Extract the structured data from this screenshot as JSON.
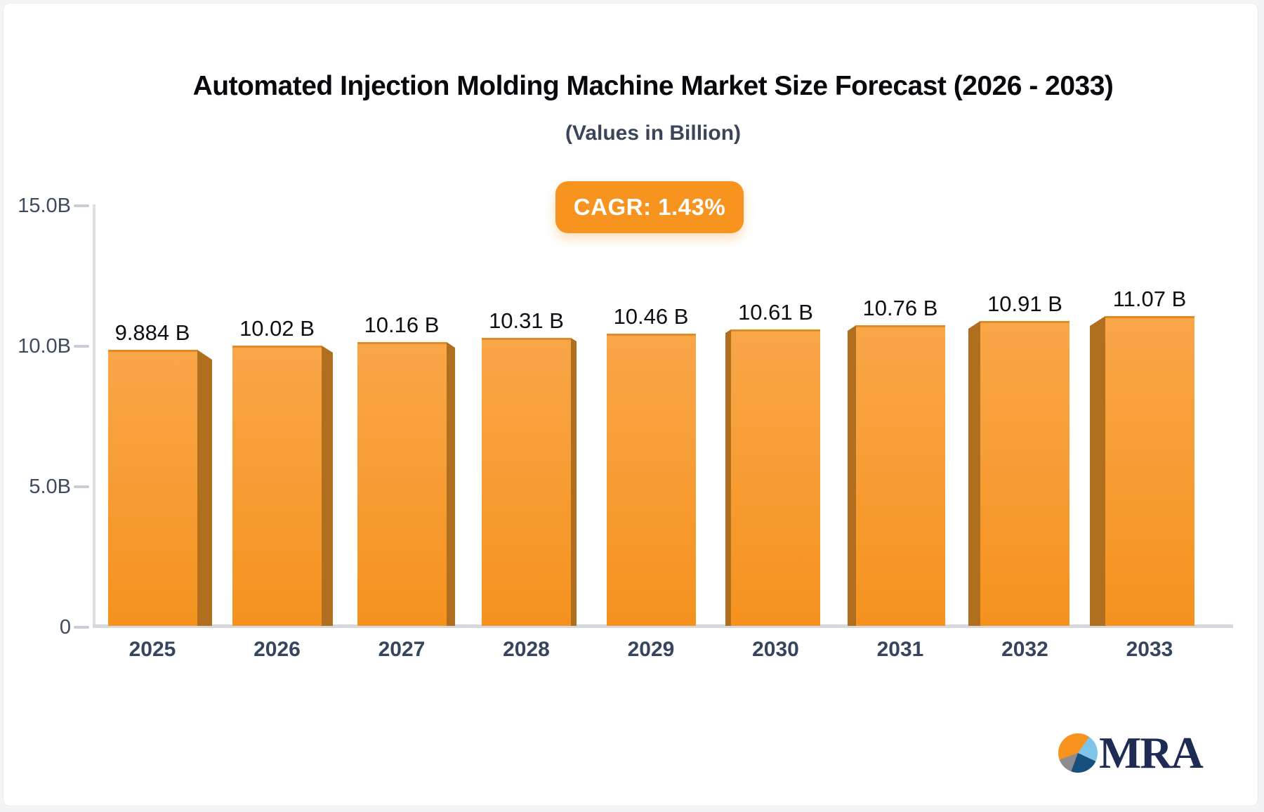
{
  "header": {
    "title": "Automated Injection Molding Machine Market Size Forecast (2026 - 2033)",
    "subtitle": "(Values in Billion)",
    "cagr_label": "CAGR: 1.43%"
  },
  "chart_data": {
    "type": "bar",
    "title": "Automated Injection Molding Machine Market Size Forecast (2026 - 2033)",
    "subtitle": "(Values in Billion)",
    "cagr": "1.43%",
    "categories": [
      "2025",
      "2026",
      "2027",
      "2028",
      "2029",
      "2030",
      "2031",
      "2032",
      "2033"
    ],
    "values": [
      9.884,
      10.02,
      10.16,
      10.31,
      10.46,
      10.61,
      10.76,
      10.91,
      11.07
    ],
    "value_labels": [
      "9.884 B",
      "10.02 B",
      "10.16 B",
      "10.31 B",
      "10.46 B",
      "10.61 B",
      "10.76 B",
      "10.91 B",
      "11.07 B"
    ],
    "xlabel": "",
    "ylabel": "",
    "ylim": [
      0,
      15
    ],
    "yticks": [
      {
        "label": "15.0B",
        "value": 15
      },
      {
        "label": "10.0B",
        "value": 10
      },
      {
        "label": "5.0B",
        "value": 5
      },
      {
        "label": "0",
        "value": 0
      }
    ],
    "grid": false,
    "legend": false,
    "bar_color": "#f5921e",
    "bar_color_light": "#f9a648",
    "bar_side_color": "#b06f1e",
    "accent_color": "#f7941f"
  },
  "footer": {
    "logo_text": "MRA",
    "logo_colors": {
      "orange": "#f6921e",
      "light_blue": "#7fc5e9",
      "navy": "#17507f",
      "gray": "#8c8c91"
    }
  }
}
